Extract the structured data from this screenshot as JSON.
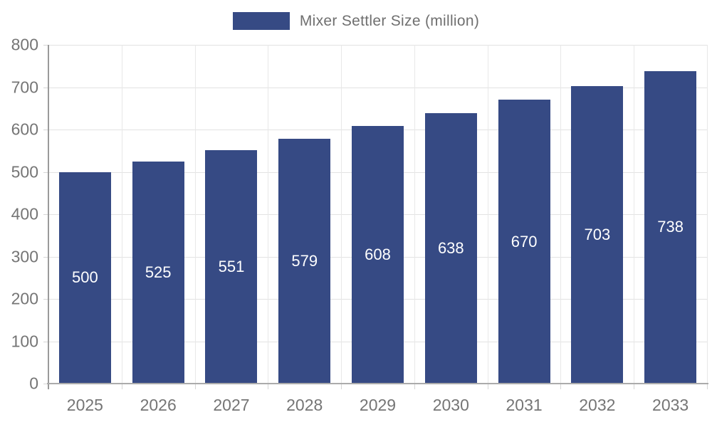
{
  "chart_data": {
    "type": "bar",
    "title": "",
    "legend_label": "Mixer Settler Size (million)",
    "legend_position": "top",
    "categories": [
      "2025",
      "2026",
      "2027",
      "2028",
      "2029",
      "2030",
      "2031",
      "2032",
      "2033"
    ],
    "values": [
      500,
      525,
      551,
      579,
      608,
      638,
      670,
      703,
      738
    ],
    "xlabel": "",
    "ylabel": "",
    "ylim": [
      0,
      800
    ],
    "ytick_step": 100,
    "ytick_labels": [
      "0",
      "100",
      "200",
      "300",
      "400",
      "500",
      "600",
      "700",
      "800"
    ],
    "grid": true,
    "data_labels": "inside-center-white",
    "colors": {
      "bar": "#364a84",
      "data_label": "#ffffff",
      "axis_text": "#757575",
      "legend_text": "#6f6f6f",
      "gridline": "#e2e2e2",
      "axis_line": "#9a9a9a"
    }
  }
}
